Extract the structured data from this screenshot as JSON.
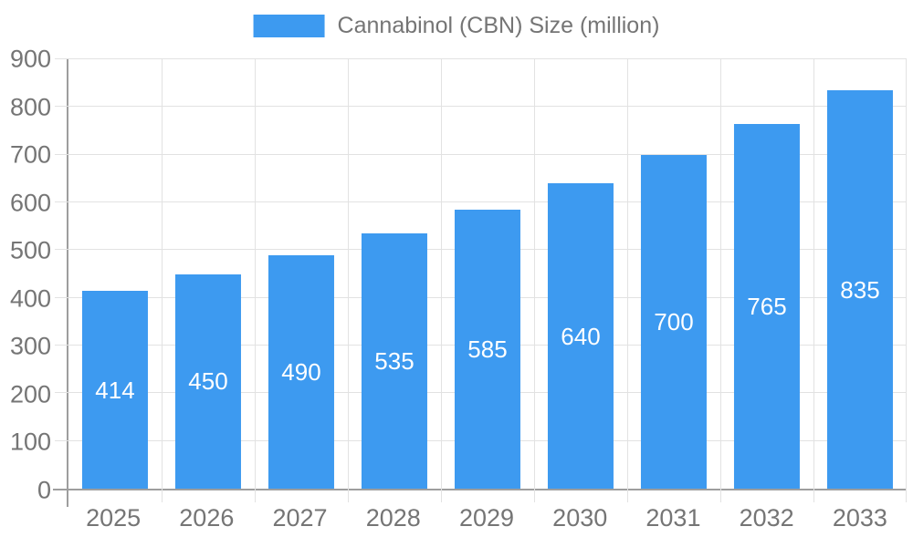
{
  "legend": {
    "label": "Cannabinol (CBN) Size (million)"
  },
  "chart_data": {
    "type": "bar",
    "title": "",
    "xlabel": "",
    "ylabel": "",
    "categories": [
      "2025",
      "2026",
      "2027",
      "2028",
      "2029",
      "2030",
      "2031",
      "2032",
      "2033"
    ],
    "series": [
      {
        "name": "Cannabinol (CBN) Size (million)",
        "values": [
          414,
          450,
          490,
          535,
          585,
          640,
          700,
          765,
          835
        ]
      }
    ],
    "bar_labels_shown": true,
    "ylim": [
      0,
      900
    ],
    "y_ticks": [
      0,
      100,
      200,
      300,
      400,
      500,
      600,
      700,
      800,
      900
    ],
    "grid": "horizontal lines at each y tick plus vertical lines at category boundaries",
    "legend_position": "top-center"
  },
  "colors": {
    "bar": "#3D9AF0",
    "grid": "#E2E2E2",
    "axis": "#9E9E9E",
    "text": "#757575",
    "bar_label": "#FFFFFF",
    "background": "#FFFFFF"
  }
}
